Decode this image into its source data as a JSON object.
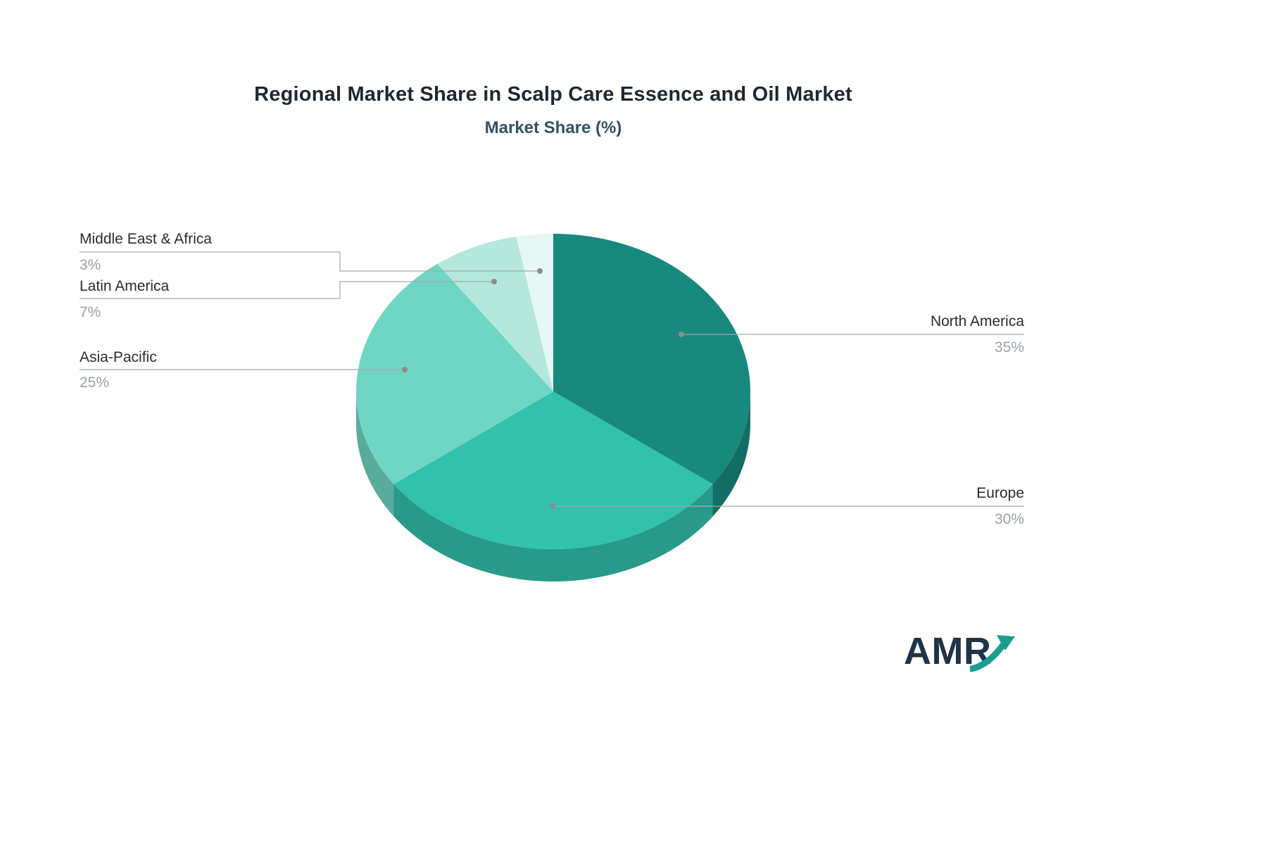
{
  "title": "Regional Market Share in Scalp Care Essence and Oil Market",
  "subtitle": "Market Share (%)",
  "logo": {
    "text": "AMR"
  },
  "chart_data": {
    "type": "pie",
    "title": "Regional Market Share in Scalp Care Essence and Oil Market",
    "subtitle": "Market Share (%)",
    "unit": "%",
    "start_angle_deg": -90,
    "direction": "clockwise",
    "style": "3d-pie",
    "legend_position": "none",
    "label_style": "leader-lines",
    "slices": [
      {
        "label": "North America",
        "value": 35,
        "pct_label": "35%",
        "color": "#17897d"
      },
      {
        "label": "Europe",
        "value": 30,
        "pct_label": "30%",
        "color": "#31c1ad"
      },
      {
        "label": "Asia-Pacific",
        "value": 25,
        "pct_label": "25%",
        "color": "#6fd6c3"
      },
      {
        "label": "Latin America",
        "value": 7,
        "pct_label": "7%",
        "color": "#b4e8dd"
      },
      {
        "label": "Middle East & Africa",
        "value": 3,
        "pct_label": "3%",
        "color": "#e7f7f3"
      }
    ],
    "line_color": "#a8a8a8",
    "dot_color": "#8c8c8c"
  }
}
